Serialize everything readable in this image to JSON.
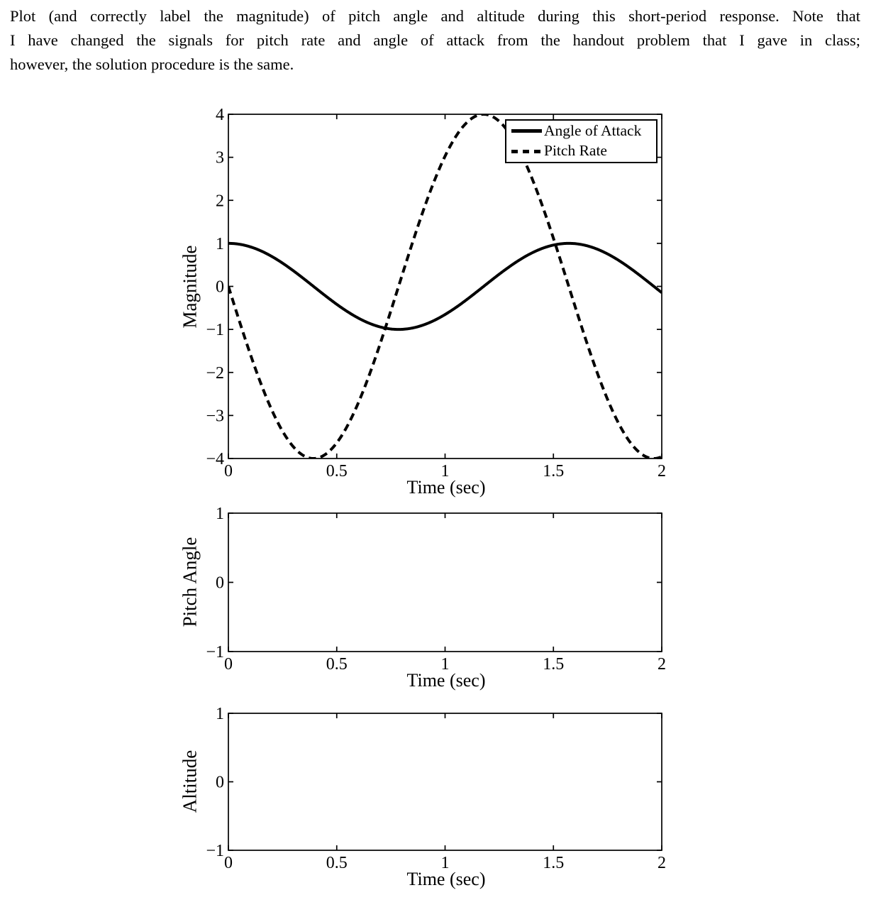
{
  "prompt": {
    "lines": [
      "Plot (and correctly label the magnitude) of pitch angle and altitude during this short-period response. Note that",
      "I have changed the signals for pitch rate and angle of attack from the handout problem that I gave in class;",
      "however, the solution procedure is the same."
    ]
  },
  "colors": {
    "foreground": "#000000",
    "background": "#ffffff"
  },
  "chart_data": [
    {
      "type": "line",
      "xlabel": "Time (sec)",
      "ylabel": "Magnitude",
      "xlim": [
        0,
        2
      ],
      "ylim": [
        -4,
        4
      ],
      "xticks": [
        0,
        0.5,
        1,
        1.5,
        2
      ],
      "yticks": [
        -4,
        -3,
        -2,
        -1,
        0,
        1,
        2,
        3,
        4
      ],
      "grid": false,
      "box": true,
      "legend": {
        "visible": true,
        "location": "northeast",
        "entries": [
          {
            "label": "Angle of Attack",
            "line_style": "solid"
          },
          {
            "label": "Pitch Rate",
            "line_style": "dashed"
          }
        ]
      },
      "series": [
        {
          "name": "Angle of Attack",
          "line_style": "solid",
          "color": "#000000",
          "line_width": 4,
          "function": {
            "func": "cos",
            "amplitude": 1,
            "omega": 4
          },
          "samples": {
            "t": [
              0,
              0.1,
              0.2,
              0.3,
              0.4,
              0.5,
              0.6,
              0.7,
              0.8,
              0.9,
              1,
              1.1,
              1.2,
              1.3,
              1.4,
              1.5,
              1.6,
              1.7,
              1.8,
              1.9,
              2
            ],
            "y": [
              1,
              0.921,
              0.697,
              0.362,
              -0.029,
              -0.416,
              -0.737,
              -0.942,
              -0.998,
              -0.897,
              -0.654,
              -0.307,
              0.087,
              0.469,
              0.776,
              0.96,
              0.993,
              0.869,
              0.608,
              0.251,
              -0.146
            ]
          }
        },
        {
          "name": "Pitch Rate",
          "line_style": "dashed",
          "color": "#000000",
          "line_width": 4,
          "function": {
            "func": "sin",
            "amplitude": -4,
            "omega": 4
          },
          "samples": {
            "t": [
              0,
              0.1,
              0.2,
              0.3,
              0.4,
              0.5,
              0.6,
              0.7,
              0.8,
              0.9,
              1,
              1.1,
              1.2,
              1.3,
              1.4,
              1.5,
              1.6,
              1.7,
              1.8,
              1.9,
              2
            ],
            "y": [
              0,
              -1.558,
              -2.869,
              -3.728,
              -3.998,
              -3.637,
              -2.702,
              -1.34,
              0.233,
              1.77,
              3.027,
              3.806,
              3.985,
              3.534,
              2.525,
              1.118,
              -0.466,
              -1.976,
              -3.175,
              -3.872,
              -3.957
            ]
          }
        }
      ]
    },
    {
      "type": "line",
      "xlabel": "Time (sec)",
      "ylabel": "Pitch Angle",
      "xlim": [
        0,
        2
      ],
      "ylim": [
        -1,
        1
      ],
      "xticks": [
        0,
        0.5,
        1,
        1.5,
        2
      ],
      "yticks": [
        -1,
        0,
        1
      ],
      "grid": false,
      "box": true,
      "legend": {
        "visible": false,
        "entries": []
      },
      "series": []
    },
    {
      "type": "line",
      "xlabel": "Time (sec)",
      "ylabel": "Altitude",
      "xlim": [
        0,
        2
      ],
      "ylim": [
        -1,
        1
      ],
      "xticks": [
        0,
        0.5,
        1,
        1.5,
        2
      ],
      "yticks": [
        -1,
        0,
        1
      ],
      "grid": false,
      "box": true,
      "legend": {
        "visible": false,
        "entries": []
      },
      "series": []
    }
  ]
}
